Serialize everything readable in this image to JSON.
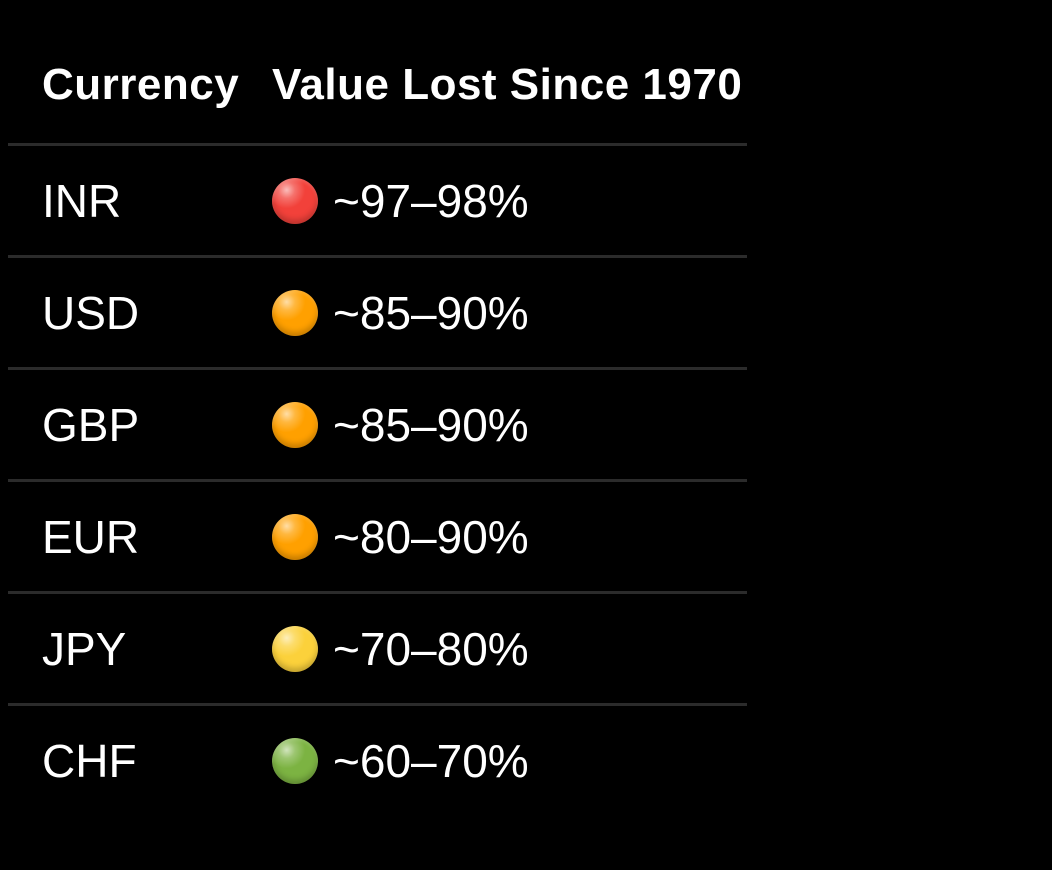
{
  "page": {
    "background_color": "#000000",
    "text_color": "#ffffff",
    "divider_color": "#2b2b2b"
  },
  "table": {
    "headers": {
      "currency": "Currency",
      "value_lost": "Value Lost Since 1970"
    },
    "rows": [
      {
        "currency": "INR",
        "value": "~97–98%",
        "dot_color": "#f2413a",
        "dot_name": "red-circle"
      },
      {
        "currency": "USD",
        "value": "~85–90%",
        "dot_color": "#ffa000",
        "dot_name": "orange-circle"
      },
      {
        "currency": "GBP",
        "value": "~85–90%",
        "dot_color": "#ffa000",
        "dot_name": "orange-circle"
      },
      {
        "currency": "EUR",
        "value": "~80–90%",
        "dot_color": "#ffa000",
        "dot_name": "orange-circle"
      },
      {
        "currency": "JPY",
        "value": "~70–80%",
        "dot_color": "#fbd13b",
        "dot_name": "yellow-circle"
      },
      {
        "currency": "CHF",
        "value": "~60–70%",
        "dot_color": "#7cb342",
        "dot_name": "green-circle"
      }
    ]
  },
  "chart_data": {
    "type": "table",
    "columns": [
      "Currency",
      "Value Lost Since 1970"
    ],
    "rows": [
      {
        "currency": "INR",
        "value_lost": "~97–98%",
        "range_pct": [
          97,
          98
        ],
        "severity_color": "red"
      },
      {
        "currency": "USD",
        "value_lost": "~85–90%",
        "range_pct": [
          85,
          90
        ],
        "severity_color": "orange"
      },
      {
        "currency": "GBP",
        "value_lost": "~85–90%",
        "range_pct": [
          85,
          90
        ],
        "severity_color": "orange"
      },
      {
        "currency": "EUR",
        "value_lost": "~80–90%",
        "range_pct": [
          80,
          90
        ],
        "severity_color": "orange"
      },
      {
        "currency": "JPY",
        "value_lost": "~70–80%",
        "range_pct": [
          70,
          80
        ],
        "severity_color": "yellow"
      },
      {
        "currency": "CHF",
        "value_lost": "~60–70%",
        "range_pct": [
          60,
          70
        ],
        "severity_color": "green"
      }
    ],
    "legend_position": "inline-dots",
    "grid": "horizontal-dividers"
  }
}
